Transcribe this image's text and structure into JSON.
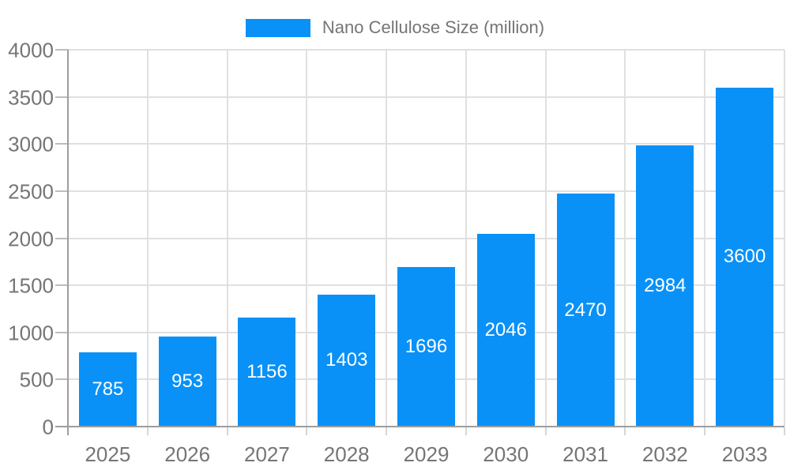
{
  "chart_data": {
    "type": "bar",
    "title": "",
    "legend": "Nano Cellulose Size (million)",
    "legend_position": "top",
    "categories": [
      "2025",
      "2026",
      "2027",
      "2028",
      "2029",
      "2030",
      "2031",
      "2032",
      "2033"
    ],
    "values": [
      785,
      953,
      1156,
      1403,
      1696,
      2046,
      2470,
      2984,
      3600
    ],
    "xlabel": "",
    "ylabel": "",
    "ylim": [
      0,
      4000
    ],
    "ytick_step": 500,
    "yticks": [
      0,
      500,
      1000,
      1500,
      2000,
      2500,
      3000,
      3500,
      4000
    ],
    "grid": true,
    "bar_labels_visible": true,
    "colors": {
      "bar": "#0991f7",
      "bar_label": "#ffffff",
      "axis_text": "#757575",
      "axis_line": "#9e9e9e",
      "y_tick": "#bdbdbd",
      "x_tick": "#d6d6d6",
      "gridline": "#e0e0e0",
      "background": "#ffffff"
    }
  }
}
